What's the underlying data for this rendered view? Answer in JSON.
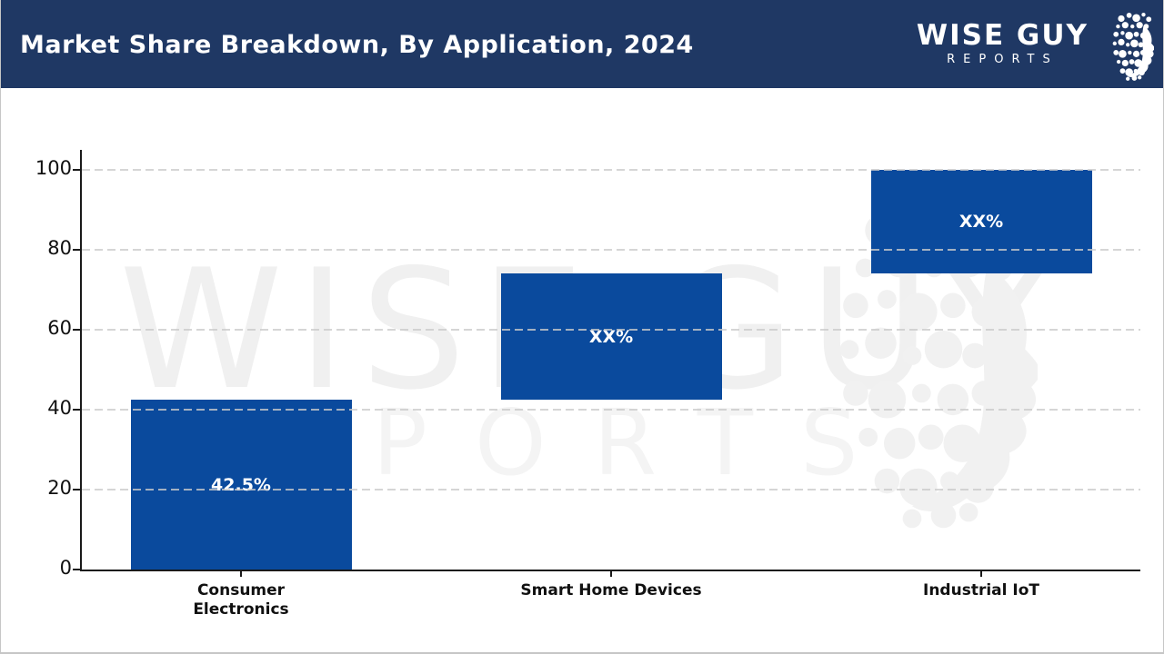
{
  "header": {
    "title": "Market Share Breakdown, By Application, 2024",
    "logo": {
      "wordmark": "WISE GUY",
      "subtext": "REPORTS"
    }
  },
  "watermark": {
    "wordmark": "WISE GUY",
    "subtext": "REPORTS"
  },
  "chart_data": {
    "type": "bar",
    "subtype": "floating-waterfall",
    "title": "Market Share Breakdown, By Application, 2024",
    "categories": [
      "Consumer\nElectronics",
      "Smart Home Devices",
      "Industrial IoT"
    ],
    "segments": [
      {
        "category": "Consumer Electronics",
        "start": 0,
        "end": 42.5,
        "label": "42.5%"
      },
      {
        "category": "Smart Home Devices",
        "start": 42.5,
        "end": 74,
        "label": "XX%"
      },
      {
        "category": "Industrial IoT",
        "start": 74,
        "end": 100,
        "label": "XX%"
      }
    ],
    "xlabel": "",
    "ylabel": "",
    "yticks": [
      0,
      20,
      40,
      60,
      80,
      100
    ],
    "ylim": [
      0,
      105
    ],
    "grid": "horizontal-dashed",
    "legend": "none",
    "colors": {
      "bar": "#0a4a9d",
      "bar_label": "#ffffff",
      "header_bg": "#1f3864",
      "axis": "#1a1a1a",
      "gridline": "#cdcdcd",
      "watermark": "#f0f0f0"
    }
  }
}
